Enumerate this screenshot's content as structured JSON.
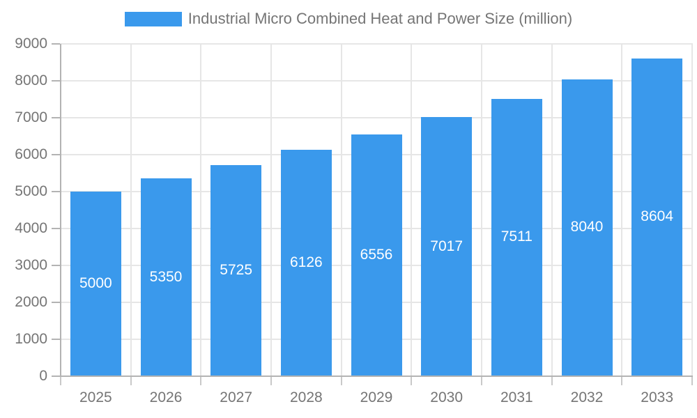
{
  "legend": {
    "label": "Industrial Micro Combined Heat and Power Size (million)",
    "swatch_color": "#3a99ec"
  },
  "chart_data": {
    "type": "bar",
    "title": "Industrial Micro Combined Heat and Power Size (million)",
    "categories": [
      "2025",
      "2026",
      "2027",
      "2028",
      "2029",
      "2030",
      "2031",
      "2032",
      "2033"
    ],
    "values": [
      5000,
      5350,
      5725,
      6126,
      6556,
      7017,
      7511,
      8040,
      8604
    ],
    "xlabel": "",
    "ylabel": "",
    "ylim": [
      0,
      9000
    ],
    "ytick_step": 1000,
    "ytick_labels": [
      "0",
      "1000",
      "2000",
      "3000",
      "4000",
      "5000",
      "6000",
      "7000",
      "8000",
      "9000"
    ],
    "grid": true,
    "legend_position": "top",
    "bar_color": "#3a99ec",
    "value_label_color": "#ffffff",
    "axis_text_color": "#757575",
    "gridline_color": "#e6e6e6",
    "axis_line_color": "#b3b3b3"
  }
}
